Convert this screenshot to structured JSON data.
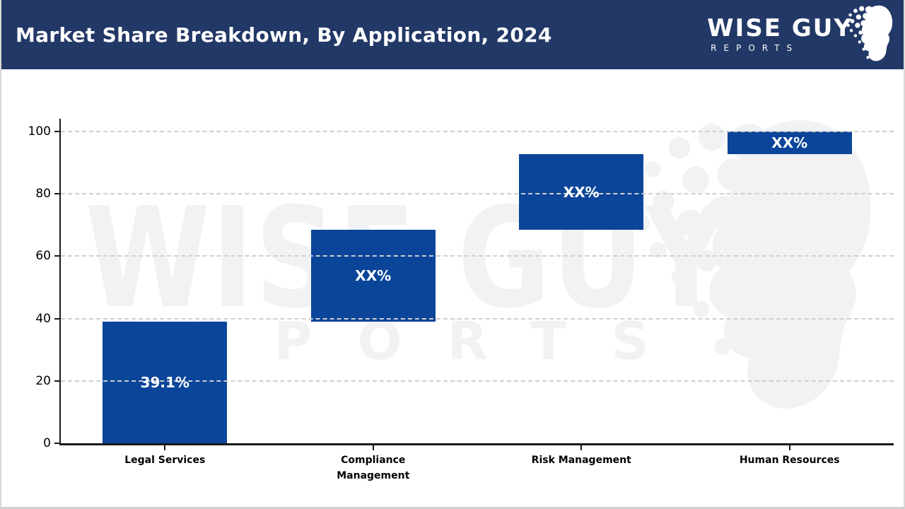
{
  "header": {
    "title": "Market Share Breakdown, By Application, 2024",
    "logo": {
      "name": "WISE GUY",
      "subtitle": "REPORTS"
    }
  },
  "watermark": {
    "line1": "WISE GUY",
    "line2": "REPORTS"
  },
  "chart_data": {
    "type": "bar",
    "variant": "waterfall-floating-segments",
    "title": "Market Share Breakdown, By Application, 2024",
    "categories": [
      "Legal Services",
      "Compliance Management",
      "Risk Management",
      "Human Resources"
    ],
    "bars": [
      {
        "category": "Legal Services",
        "start": 0,
        "end": 39.1,
        "label": "39.1%"
      },
      {
        "category": "Compliance Management",
        "start": 39.1,
        "end": 68.4,
        "label": "XX%"
      },
      {
        "category": "Risk Management",
        "start": 68.4,
        "end": 92.8,
        "label": "XX%"
      },
      {
        "category": "Human Resources",
        "start": 92.8,
        "end": 100,
        "label": "XX%"
      }
    ],
    "ylim": [
      0,
      100
    ],
    "yticks": [
      0,
      20,
      40,
      60,
      80,
      100
    ],
    "grid": {
      "horizontal": true,
      "style": "dashed"
    },
    "legend": "none",
    "bar_color": "#0a459a",
    "bar_label_color": "#ffffff"
  },
  "colors": {
    "header_bg": "#223866",
    "header_text": "#ffffff",
    "bar": "#0a459a",
    "axis": "#1a1a1a",
    "gridline": "#cfcfcf",
    "watermark": "#f1f2f4",
    "page_border": "#d9d9d9"
  }
}
